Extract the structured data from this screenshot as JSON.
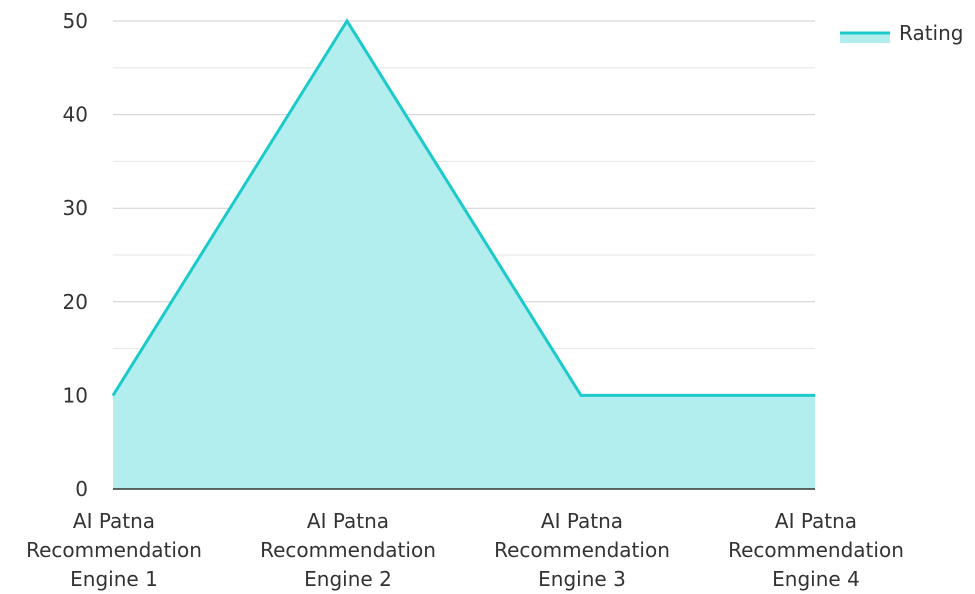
{
  "chart_data": {
    "type": "area",
    "title": "",
    "xlabel": "",
    "ylabel": "",
    "categories": [
      [
        "AI Patna",
        "Recommendation",
        "Engine 1"
      ],
      [
        "AI Patna",
        "Recommendation",
        "Engine 2"
      ],
      [
        "AI Patna",
        "Recommendation",
        "Engine 3"
      ],
      [
        "AI Patna",
        "Recommendation",
        "Engine 4"
      ]
    ],
    "series": [
      {
        "name": "Rating",
        "values": [
          10,
          50,
          10,
          10
        ],
        "color": "#1ccacc",
        "fill": "#b2eeee"
      }
    ],
    "ylim": [
      0,
      50
    ],
    "y_ticks": [
      0,
      10,
      20,
      30,
      40,
      50
    ],
    "grid": true,
    "legend": {
      "position": "top-right",
      "labels": [
        "Rating"
      ]
    }
  }
}
